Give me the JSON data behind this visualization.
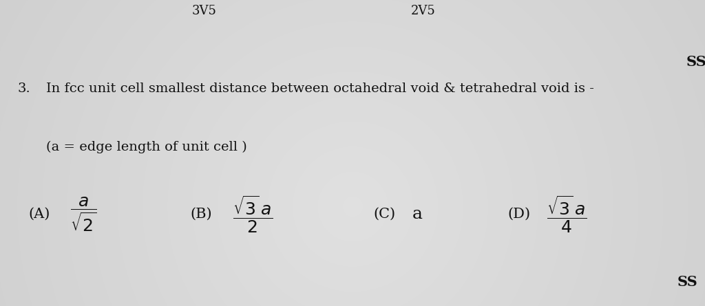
{
  "background_color": "#c8c8c8",
  "question_number": "3.",
  "question_text": "In fcc unit cell smallest distance between octahedral void & tetrahedral void is -",
  "question_subtext": "(a = edge length of unit cell )",
  "options": [
    "(A)",
    "(B)",
    "(C)",
    "(D)"
  ],
  "option_A_formula": "$\\dfrac{a}{\\sqrt{2}}$",
  "option_B_formula": "$\\dfrac{\\sqrt{3}\\,a}{2}$",
  "option_C_formula": "a",
  "option_D_formula": "$\\dfrac{\\sqrt{3}\\,a}{4}$",
  "corner_text_top_right": "SS",
  "corner_text_bottom_right": "SS",
  "text_color": "#111111",
  "font_size_question": 14,
  "font_size_options_label": 15,
  "font_size_options_formula": 16,
  "font_size_corner": 15,
  "top_cut_text_left": "3V5",
  "top_cut_text_right": "2V5",
  "gradient_light": "#e8e8e8",
  "gradient_dark": "#b0b0b0"
}
